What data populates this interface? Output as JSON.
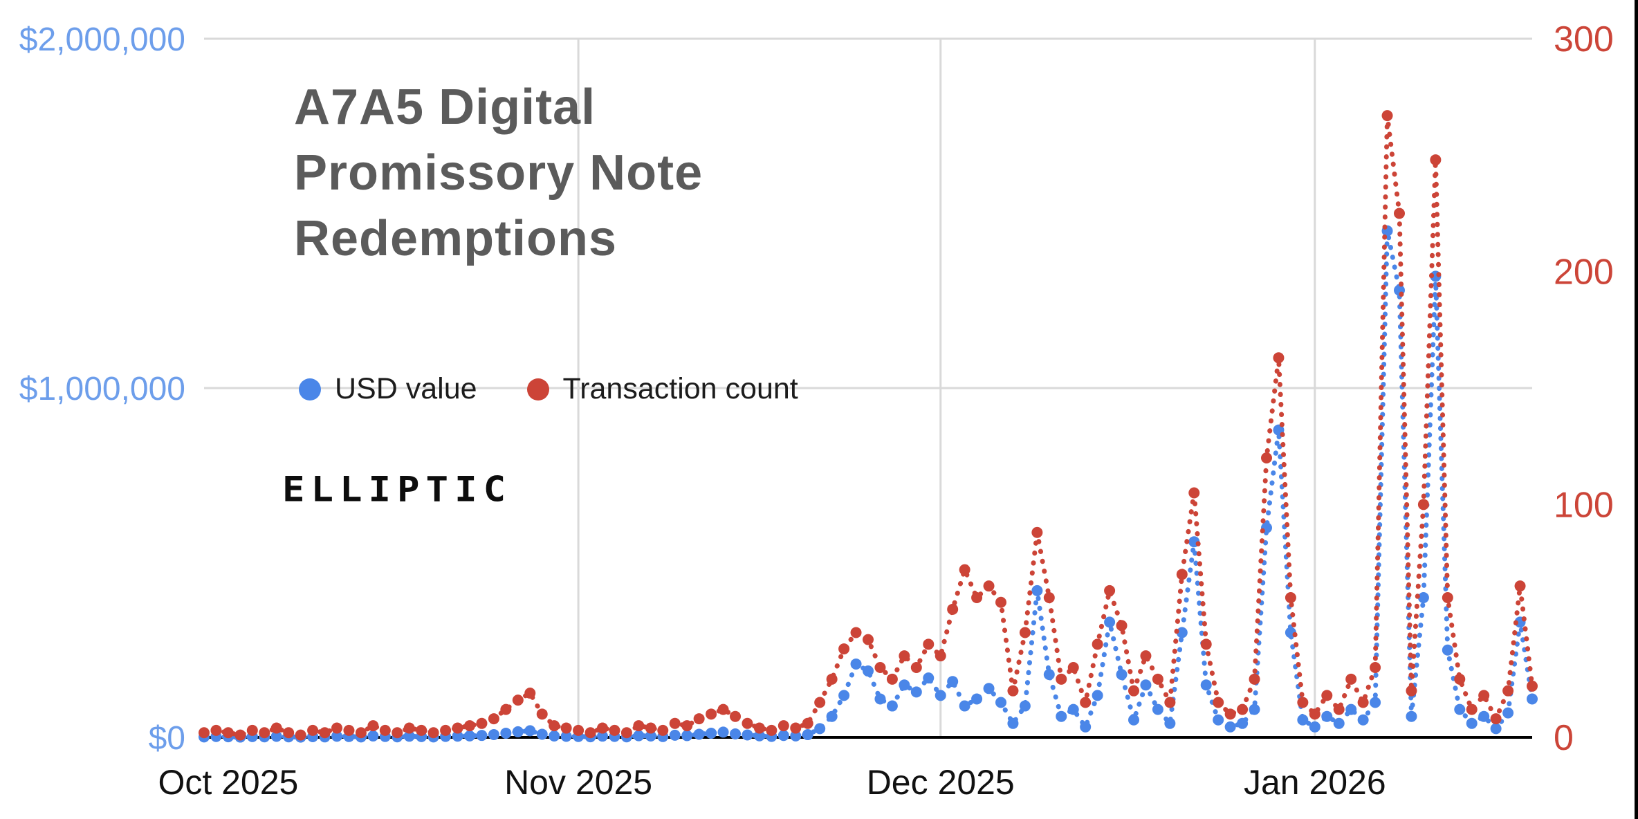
{
  "title": "A7A5 Digital Promissory Note Redemptions",
  "logo": "ELLIPTIC",
  "legend": [
    {
      "label": "USD value",
      "color": "#4a86e8"
    },
    {
      "label": "Transaction count",
      "color": "#cc4437"
    }
  ],
  "colors": {
    "grid": "#d9d9d9",
    "baseline": "#000000",
    "title": "#5b5b5b",
    "x_labels": "#111111",
    "background": "#ffffff"
  },
  "chart_data": {
    "type": "line",
    "style": "dotted-with-markers",
    "x_unit": "day",
    "x_start_date": "2025-10-01",
    "x_end_date": "2026-01-19",
    "x_ticks": [
      {
        "day": 2,
        "label": "Oct 2025"
      },
      {
        "day": 31,
        "label": "Nov 2025"
      },
      {
        "day": 61,
        "label": "Dec 2025"
      },
      {
        "day": 92,
        "label": "Jan 2026"
      }
    ],
    "month_gridline_days": [
      31,
      61,
      92
    ],
    "left_axis": {
      "title": "USD value",
      "min": 0,
      "max": 2000000,
      "color": "#6d9eeb",
      "ticks": [
        {
          "value": 0,
          "label": "$0"
        },
        {
          "value": 1000000,
          "label": "$1,000,000"
        },
        {
          "value": 2000000,
          "label": "$2,000,000"
        }
      ]
    },
    "right_axis": {
      "title": "Transaction count",
      "min": 0,
      "max": 300,
      "color": "#cc4538",
      "ticks": [
        {
          "value": 0,
          "label": "0"
        },
        {
          "value": 100,
          "label": "100"
        },
        {
          "value": 200,
          "label": "200"
        },
        {
          "value": 300,
          "label": "300"
        }
      ]
    },
    "series": [
      {
        "name": "USD value",
        "axis": "left",
        "color": "#4a86e8",
        "values": [
          1200,
          2500,
          1800,
          900,
          2200,
          1500,
          3000,
          1600,
          800,
          2100,
          1400,
          3200,
          2400,
          1300,
          4100,
          2600,
          1500,
          3400,
          2300,
          1200,
          2800,
          3500,
          4200,
          5600,
          8000,
          12000,
          16000,
          19000,
          9000,
          4000,
          3000,
          2500,
          1800,
          3600,
          2700,
          1500,
          4800,
          3900,
          2400,
          6200,
          5100,
          9000,
          12000,
          15000,
          10000,
          7000,
          4500,
          2800,
          5500,
          4200,
          7800,
          25000,
          60000,
          120000,
          210000,
          190000,
          110000,
          90000,
          150000,
          130000,
          170000,
          120000,
          160000,
          90000,
          110000,
          140000,
          100000,
          40000,
          90000,
          420000,
          180000,
          60000,
          80000,
          30000,
          120000,
          330000,
          180000,
          50000,
          150000,
          80000,
          40000,
          300000,
          560000,
          150000,
          50000,
          30000,
          40000,
          80000,
          600000,
          880000,
          300000,
          50000,
          30000,
          60000,
          40000,
          80000,
          50000,
          100000,
          1450000,
          1280000,
          60000,
          400000,
          1320000,
          250000,
          80000,
          40000,
          60000,
          25000,
          70000,
          330000,
          110000
        ]
      },
      {
        "name": "Transaction count",
        "axis": "right",
        "color": "#cc4437",
        "values": [
          2,
          3,
          2,
          1,
          3,
          2,
          4,
          2,
          1,
          3,
          2,
          4,
          3,
          2,
          5,
          3,
          2,
          4,
          3,
          2,
          3,
          4,
          5,
          6,
          8,
          12,
          16,
          19,
          10,
          5,
          4,
          3,
          2,
          4,
          3,
          2,
          5,
          4,
          3,
          6,
          5,
          8,
          10,
          12,
          9,
          6,
          4,
          3,
          5,
          4,
          6,
          15,
          25,
          38,
          45,
          42,
          30,
          25,
          35,
          30,
          40,
          35,
          55,
          72,
          60,
          65,
          58,
          20,
          45,
          88,
          60,
          25,
          30,
          15,
          40,
          63,
          48,
          20,
          35,
          25,
          15,
          70,
          105,
          40,
          15,
          10,
          12,
          25,
          120,
          163,
          60,
          15,
          10,
          18,
          12,
          25,
          15,
          30,
          267,
          225,
          20,
          100,
          248,
          60,
          25,
          12,
          18,
          8,
          20,
          65,
          22
        ]
      }
    ]
  }
}
